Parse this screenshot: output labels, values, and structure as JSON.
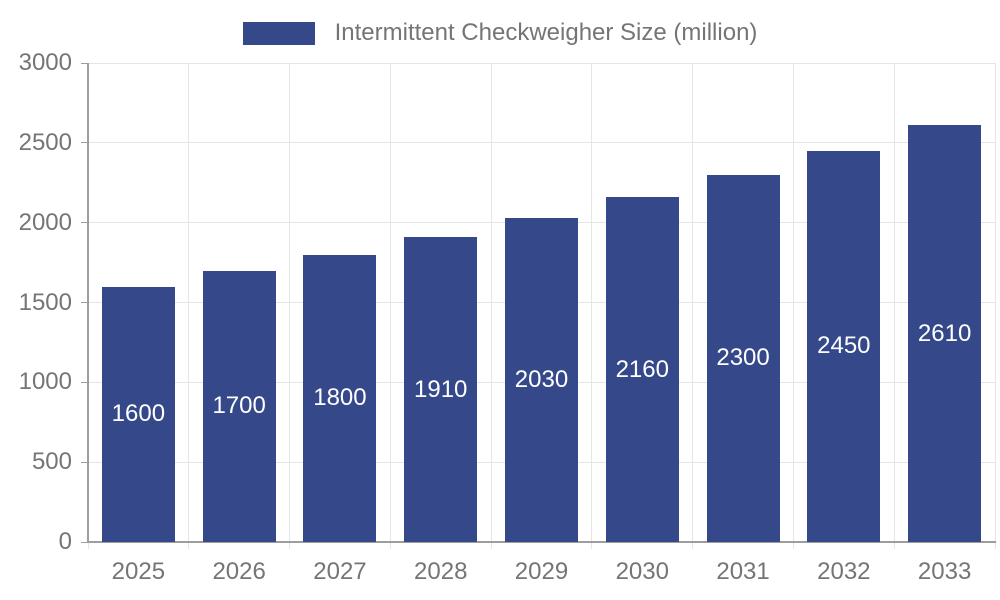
{
  "chart_data": {
    "type": "bar",
    "title": "",
    "legend_label": "Intermittent Checkweigher Size (million)",
    "legend_position": "top",
    "categories": [
      "2025",
      "2026",
      "2027",
      "2028",
      "2029",
      "2030",
      "2031",
      "2032",
      "2033"
    ],
    "series": [
      {
        "name": "Intermittent Checkweigher Size (million)",
        "values": [
          1600,
          1700,
          1800,
          1910,
          2030,
          2160,
          2300,
          2450,
          2610
        ]
      }
    ],
    "xlabel": "",
    "ylabel": "",
    "ylim": [
      0,
      3000
    ],
    "ytick_step": 500,
    "yticks": [
      "0",
      "500",
      "1000",
      "1500",
      "2000",
      "2500",
      "3000"
    ],
    "grid": true,
    "value_labels_shown": true,
    "colors": {
      "bar": "#35498A",
      "bar_value_label": "#FFFFFF",
      "axis_text": "#757575",
      "legend_text": "#757575",
      "gridline": "#E5E5E5",
      "axis_line": "#9E9E9E",
      "background": "#FFFFFF"
    }
  }
}
